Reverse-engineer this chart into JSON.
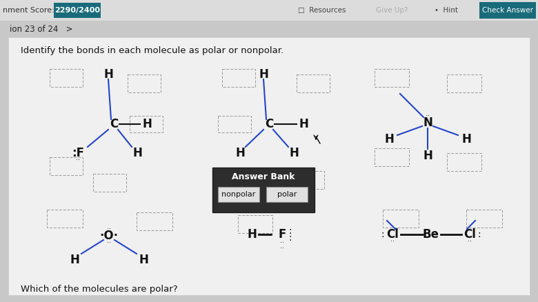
{
  "bg_color": "#c8c8c8",
  "header_bg": "#e8e8e8",
  "score_badge_color": "#1a6b7a",
  "score_text": "2290/2400",
  "resources_text": "Resources",
  "givup_text": "Give Up?",
  "hint_text": "Hint",
  "check_text": "Check Answer",
  "check_btn_color": "#1a6b7a",
  "question_nav": "ion 23 of 24   >",
  "main_bg": "#f2f2f2",
  "question_text": "Identify the bonds in each molecule as polar or nonpolar.",
  "bottom_question": "Which of the molecules are polar?",
  "answer_bank_title": "Answer Bank",
  "answer_bank_bg": "#3a3a3a",
  "btn1": "nonpolar",
  "btn2": "polar",
  "btn_bg": "#e8e8e8",
  "dashed_box_color": "#999999",
  "bond_color": "#2244cc",
  "text_color": "#111111",
  "header_text_color": "#555555"
}
